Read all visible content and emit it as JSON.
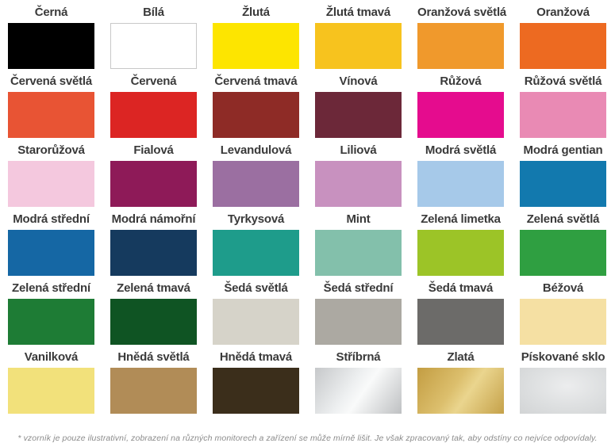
{
  "palette": {
    "label_color": "#3a3a3a",
    "cells": [
      {
        "label": "Černá",
        "background": "#000000"
      },
      {
        "label": "Bílá",
        "background": "#ffffff",
        "border": "#c8c8c8"
      },
      {
        "label": "Žlutá",
        "background": "#fde500"
      },
      {
        "label": "Žlutá tmavá",
        "background": "#f7c31e"
      },
      {
        "label": "Oranžová světlá",
        "background": "#f0992c"
      },
      {
        "label": "Oranžová",
        "background": "#ed6a21"
      },
      {
        "label": "Červená světlá",
        "background": "#e85434"
      },
      {
        "label": "Červená",
        "background": "#dc2523"
      },
      {
        "label": "Červená tmavá",
        "background": "#8e2b26"
      },
      {
        "label": "Vínová",
        "background": "#6c2839"
      },
      {
        "label": "Růžová",
        "background": "#e50c8e"
      },
      {
        "label": "Růžová světlá",
        "background": "#e98ab4"
      },
      {
        "label": "Starorůžová",
        "background": "#f4c8de"
      },
      {
        "label": "Fialová",
        "background": "#8e1a58"
      },
      {
        "label": "Levandulová",
        "background": "#9b6fa1"
      },
      {
        "label": "Liliová",
        "background": "#c891bf"
      },
      {
        "label": "Modrá světlá",
        "background": "#a6c9e9"
      },
      {
        "label": "Modrá gentian",
        "background": "#1279ae"
      },
      {
        "label": "Modrá střední",
        "background": "#1567a4"
      },
      {
        "label": "Modrá námořní",
        "background": "#153a5e"
      },
      {
        "label": "Tyrkysová",
        "background": "#1e9c8b"
      },
      {
        "label": "Mint",
        "background": "#83c0ab"
      },
      {
        "label": "Zelená limetka",
        "background": "#9cc427"
      },
      {
        "label": "Zelená světlá",
        "background": "#2f9f41"
      },
      {
        "label": "Zelená střední",
        "background": "#1e7c35"
      },
      {
        "label": "Zelená tmavá",
        "background": "#0f5423"
      },
      {
        "label": "Šedá světlá",
        "background": "#d6d3c9"
      },
      {
        "label": "Šedá střední",
        "background": "#aca9a2"
      },
      {
        "label": "Šedá tmavá",
        "background": "#6c6b69"
      },
      {
        "label": "Béžová",
        "background": "#f5e0a3"
      },
      {
        "label": "Vanilková",
        "background": "#f2e17b"
      },
      {
        "label": "Hnědá světlá",
        "background": "#b18c57"
      },
      {
        "label": "Hnědá tmavá",
        "background": "#3b2e1b"
      },
      {
        "label": "Stříbrná",
        "background": "linear-gradient(125deg, #c6c8ca 0%, #eef0f1 42%, #f9fafa 55%, #bec0c2 100%)"
      },
      {
        "label": "Zlatá",
        "background": "linear-gradient(125deg, #c39d42 0%, #dcbf6d 42%, #ead58e 58%, #c5a149 100%)"
      },
      {
        "label": "Pískované sklo",
        "background": "radial-gradient(ellipse at 55% 40%, #ecedee 0%, #dddfe0 55%, #d2d4d5 100%)"
      }
    ]
  },
  "footer": {
    "note": "* vzorník je pouze ilustrativní, zobrazení na různých monitorech a zařízení se může mírně lišit. Je však zpracovaný tak, aby odstíny co nejvíce odpovídaly."
  }
}
